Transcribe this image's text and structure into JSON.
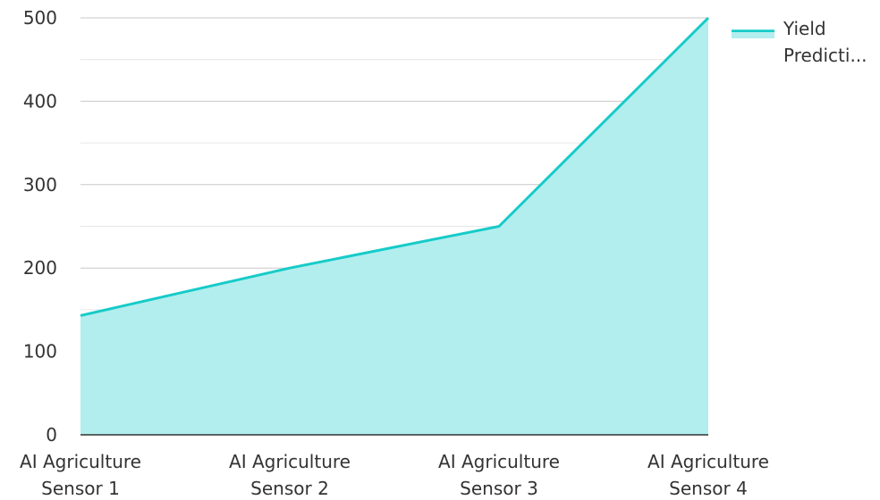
{
  "chart_data": {
    "type": "area",
    "title": "",
    "xlabel": "",
    "ylabel": "",
    "ylim": [
      0,
      500
    ],
    "yticks": [
      0,
      100,
      200,
      300,
      400,
      500
    ],
    "grid": true,
    "legend_position": "top-right",
    "categories": [
      [
        "AI Agriculture",
        "Sensor 1"
      ],
      [
        "AI Agriculture",
        "Sensor 2"
      ],
      [
        "AI Agriculture",
        "Sensor 3"
      ],
      [
        "AI Agriculture",
        "Sensor 4"
      ]
    ],
    "series": [
      {
        "name": "Yield Predicti...",
        "name_lines": [
          "Yield",
          "Predicti..."
        ],
        "values": [
          143,
          200,
          250,
          500
        ],
        "line_color": "#16CBC8",
        "fill_color": "#B2EEEE"
      }
    ],
    "colors": {
      "gridline": "#C8C8C8",
      "minor_gridline": "#E6E6E6",
      "axis": "#333333"
    }
  }
}
